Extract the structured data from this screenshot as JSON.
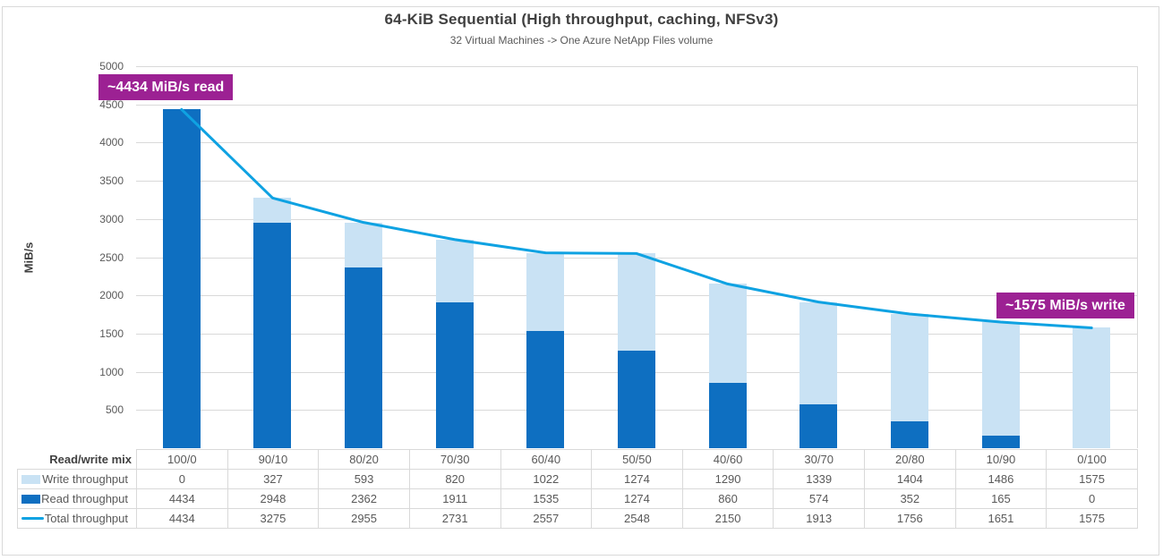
{
  "title": "64-KiB Sequential (High throughput, caching, NFSv3)",
  "subtitle": "32 Virtual Machines -> One Azure NetApp Files volume",
  "y_axis": {
    "label": "MiB/s",
    "ticks": [
      5000,
      4500,
      4000,
      3500,
      3000,
      2500,
      2000,
      1500,
      1000,
      500
    ],
    "min": 0,
    "max": 5000
  },
  "annotations": {
    "read": "~4434 MiB/s read",
    "write": "~1575 MiB/s write",
    "background_color": "#9C2193",
    "text_color": "#FFFFFF"
  },
  "colors": {
    "gridline": "#D9D9D9",
    "text_gray": "#595959",
    "title_gray": "#404040"
  },
  "chart_data": {
    "type": "bar",
    "subtype": "stacked-bars-with-total-line",
    "row_header": "Read/write mix",
    "categories": [
      "100/0",
      "90/10",
      "80/20",
      "70/30",
      "60/40",
      "50/50",
      "40/60",
      "30/70",
      "20/80",
      "10/90",
      "0/100"
    ],
    "series": [
      {
        "name": "Write throughput",
        "type": "bar",
        "stack_order": "top",
        "color": "#C9E2F4",
        "values": [
          0,
          327,
          593,
          820,
          1022,
          1274,
          1290,
          1339,
          1404,
          1486,
          1575
        ]
      },
      {
        "name": "Read throughput",
        "type": "bar",
        "stack_order": "bottom",
        "color": "#0E6FC1",
        "values": [
          4434,
          2948,
          2362,
          1911,
          1535,
          1274,
          860,
          574,
          352,
          165,
          0
        ]
      },
      {
        "name": "Total throughput",
        "type": "line",
        "color": "#0FA2E2",
        "values": [
          4434,
          3275,
          2955,
          2731,
          2557,
          2548,
          2150,
          1913,
          1756,
          1651,
          1575
        ]
      }
    ],
    "title": "64-KiB Sequential (High throughput, caching, NFSv3)",
    "xlabel": "Read/write mix",
    "ylabel": "MiB/s",
    "ylim": [
      0,
      5000
    ],
    "grid": "horizontal",
    "legend_position": "table-left-column"
  }
}
